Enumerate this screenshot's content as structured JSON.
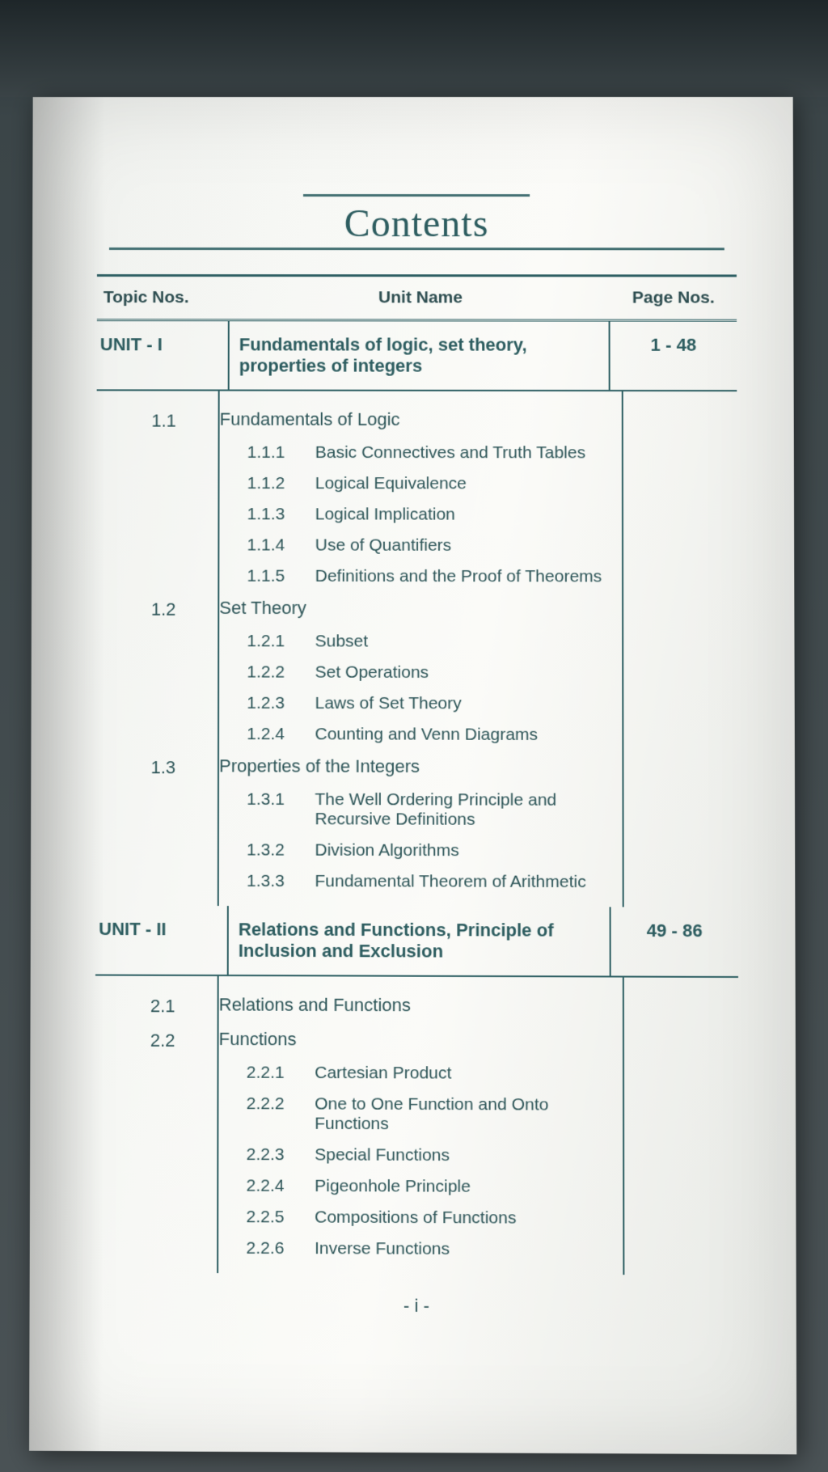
{
  "page": {
    "title": "Contents",
    "footer": "- i -",
    "colors": {
      "ink": "#2d5558",
      "rule": "#2e5f63",
      "paper_light": "#fbfbf8",
      "paper_shadow": "#e6e8e4",
      "backdrop": "#3a4548"
    },
    "fonts": {
      "title_family": "cursive",
      "title_size_pt": 36,
      "body_size_pt": 16,
      "header_weight": "bold"
    },
    "columns": {
      "topic": "Topic Nos.",
      "name": "Unit Name",
      "page": "Page Nos."
    }
  },
  "units": [
    {
      "id": "UNIT - I",
      "title": "Fundamentals of logic, set theory, properties of integers",
      "pages": "1 - 48",
      "sections": [
        {
          "num": "1.1",
          "title": "Fundamentals of Logic",
          "subs": [
            {
              "num": "1.1.1",
              "title": "Basic Connectives and Truth Tables"
            },
            {
              "num": "1.1.2",
              "title": "Logical Equivalence"
            },
            {
              "num": "1.1.3",
              "title": "Logical Implication"
            },
            {
              "num": "1.1.4",
              "title": "Use of Quantifiers"
            },
            {
              "num": "1.1.5",
              "title": "Definitions and the Proof of Theorems"
            }
          ]
        },
        {
          "num": "1.2",
          "title": "Set Theory",
          "subs": [
            {
              "num": "1.2.1",
              "title": "Subset"
            },
            {
              "num": "1.2.2",
              "title": "Set Operations"
            },
            {
              "num": "1.2.3",
              "title": "Laws of Set Theory"
            },
            {
              "num": "1.2.4",
              "title": "Counting and Venn Diagrams"
            }
          ]
        },
        {
          "num": "1.3",
          "title": "Properties of the Integers",
          "subs": [
            {
              "num": "1.3.1",
              "title": "The Well Ordering Principle and Recursive Definitions"
            },
            {
              "num": "1.3.2",
              "title": "Division Algorithms"
            },
            {
              "num": "1.3.3",
              "title": "Fundamental Theorem of Arithmetic"
            }
          ]
        }
      ]
    },
    {
      "id": "UNIT - II",
      "title": "Relations and Functions, Principle of Inclusion and Exclusion",
      "pages": "49 - 86",
      "sections": [
        {
          "num": "2.1",
          "title": "Relations and Functions",
          "subs": []
        },
        {
          "num": "2.2",
          "title": "Functions",
          "subs": [
            {
              "num": "2.2.1",
              "title": "Cartesian Product"
            },
            {
              "num": "2.2.2",
              "title": "One to One Function and Onto Functions"
            },
            {
              "num": "2.2.3",
              "title": "Special Functions"
            },
            {
              "num": "2.2.4",
              "title": "Pigeonhole Principle"
            },
            {
              "num": "2.2.5",
              "title": "Compositions of Functions"
            },
            {
              "num": "2.2.6",
              "title": "Inverse Functions"
            }
          ]
        }
      ]
    }
  ]
}
